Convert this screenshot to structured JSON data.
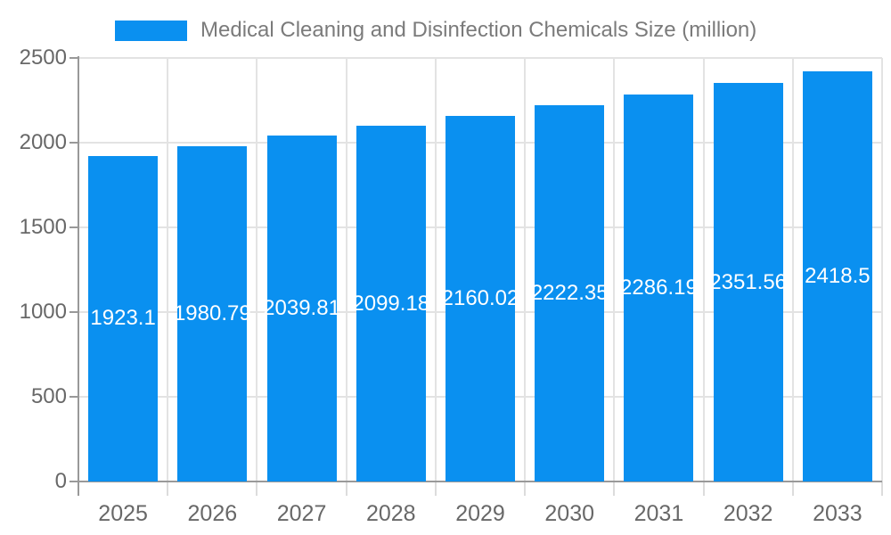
{
  "legend": {
    "label": "Medical Cleaning and Disinfection Chemicals Size (million)",
    "swatch_color": "#0a90f0"
  },
  "chart_data": {
    "type": "bar",
    "title": "Medical Cleaning and Disinfection Chemicals Size (million)",
    "categories": [
      "2025",
      "2026",
      "2027",
      "2028",
      "2029",
      "2030",
      "2031",
      "2032",
      "2033"
    ],
    "series": [
      {
        "name": "Medical Cleaning and Disinfection Chemicals Size (million)",
        "values": [
          1923.1,
          1980.79,
          2039.81,
          2099.18,
          2160.02,
          2222.35,
          2286.19,
          2351.56,
          2418.5
        ]
      }
    ],
    "value_labels": [
      "1923.1",
      "1980.79",
      "2039.81",
      "2099.18",
      "2160.02",
      "2222.35",
      "2286.19",
      "2351.56",
      "2418.5"
    ],
    "xlabel": "",
    "ylabel": "",
    "ylim": [
      0,
      2500
    ],
    "yticks": [
      0,
      500,
      1000,
      1500,
      2000,
      2500
    ],
    "grid": true,
    "legend_position": "top",
    "bar_color": "#0a90f0",
    "value_label_color": "#ffffff"
  },
  "colors": {
    "bar": "#0a90f0",
    "axis_line": "#999999",
    "gridline": "#e3e3e3",
    "minor_tick": "#dcdcdc",
    "tick_text": "#686868",
    "legend_text": "#7b7b7b",
    "background": "#ffffff"
  }
}
